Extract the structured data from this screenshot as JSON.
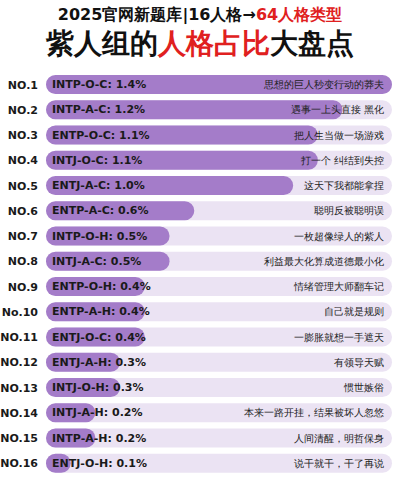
{
  "chart_data": {
    "type": "bar",
    "orientation": "horizontal",
    "subtitle": "2025官网新题库|16人格→64人格类型",
    "subtitle_highlight": "64人格类型",
    "title": "紫人组的人格占比大盘点",
    "title_highlight": "人格占比",
    "ranks": [
      "NO.1",
      "NO.2",
      "NO.3",
      "NO.4",
      "NO.5",
      "NO.6",
      "NO.7",
      "NO.8",
      "NO.9",
      "No.10",
      "NO.11",
      "NO.12",
      "NO.13",
      "NO.14",
      "NO.15",
      "NO.16"
    ],
    "categories": [
      "INTP-O-C",
      "INTP-A-C",
      "ENTP-O-C",
      "INTJ-O-C",
      "ENTJ-A-C",
      "ENTP-A-C",
      "INTP-O-H",
      "INTJ-A-C",
      "ENTP-O-H",
      "ENTP-A-H",
      "ENTJ-O-C",
      "ENTJ-A-H",
      "INTJ-O-H",
      "INTJ-A-H",
      "INTP-A-H",
      "ENTJ-O-H"
    ],
    "values": [
      1.4,
      1.2,
      1.1,
      1.1,
      1.0,
      0.6,
      0.5,
      0.5,
      0.4,
      0.4,
      0.4,
      0.3,
      0.3,
      0.2,
      0.2,
      0.1
    ],
    "value_labels": [
      "INTP-O-C: 1.4%",
      "INTP-A-C: 1.2%",
      "ENTP-O-C: 1.1%",
      "INTJ-O-C: 1.1%",
      "ENTJ-A-C: 1.0%",
      "ENTP-A-C: 0.6%",
      "INTP-O-H: 0.5%",
      "INTJ-A-C: 0.5%",
      "ENTP-O-H: 0.4%",
      "ENTP-A-H: 0.4%",
      "ENTJ-O-C: 0.4%",
      "ENTJ-A-H: 0.3%",
      "INTJ-O-H: 0.3%",
      "INTJ-A-H: 0.2%",
      "INTP-A-H: 0.2%",
      "ENTJ-O-H: 0.1%"
    ],
    "descriptions": [
      "思想的巨人秒变行动的莽夫",
      "遇事一上头直接 黑化",
      "把人生当做一场游戏",
      "打一个 纠结到失控",
      "这天下我都能拿捏",
      "聪明反被聪明误",
      "一枚超像绿人的紫人",
      "利益最大化算成道德最小化",
      "情绪管理大师翻车记",
      "自己就是规则",
      "一膨胀就想一手遮天",
      "有领导天赋",
      "惯世嫉俗",
      "本来一路开挂，结果被坏人忽悠",
      "人间清醒，明哲保身",
      "说干就干，干了再说"
    ],
    "xlim": [
      0,
      1.4
    ],
    "tick_labels": "y",
    "data_labels": true,
    "color": "#a47cc9"
  }
}
